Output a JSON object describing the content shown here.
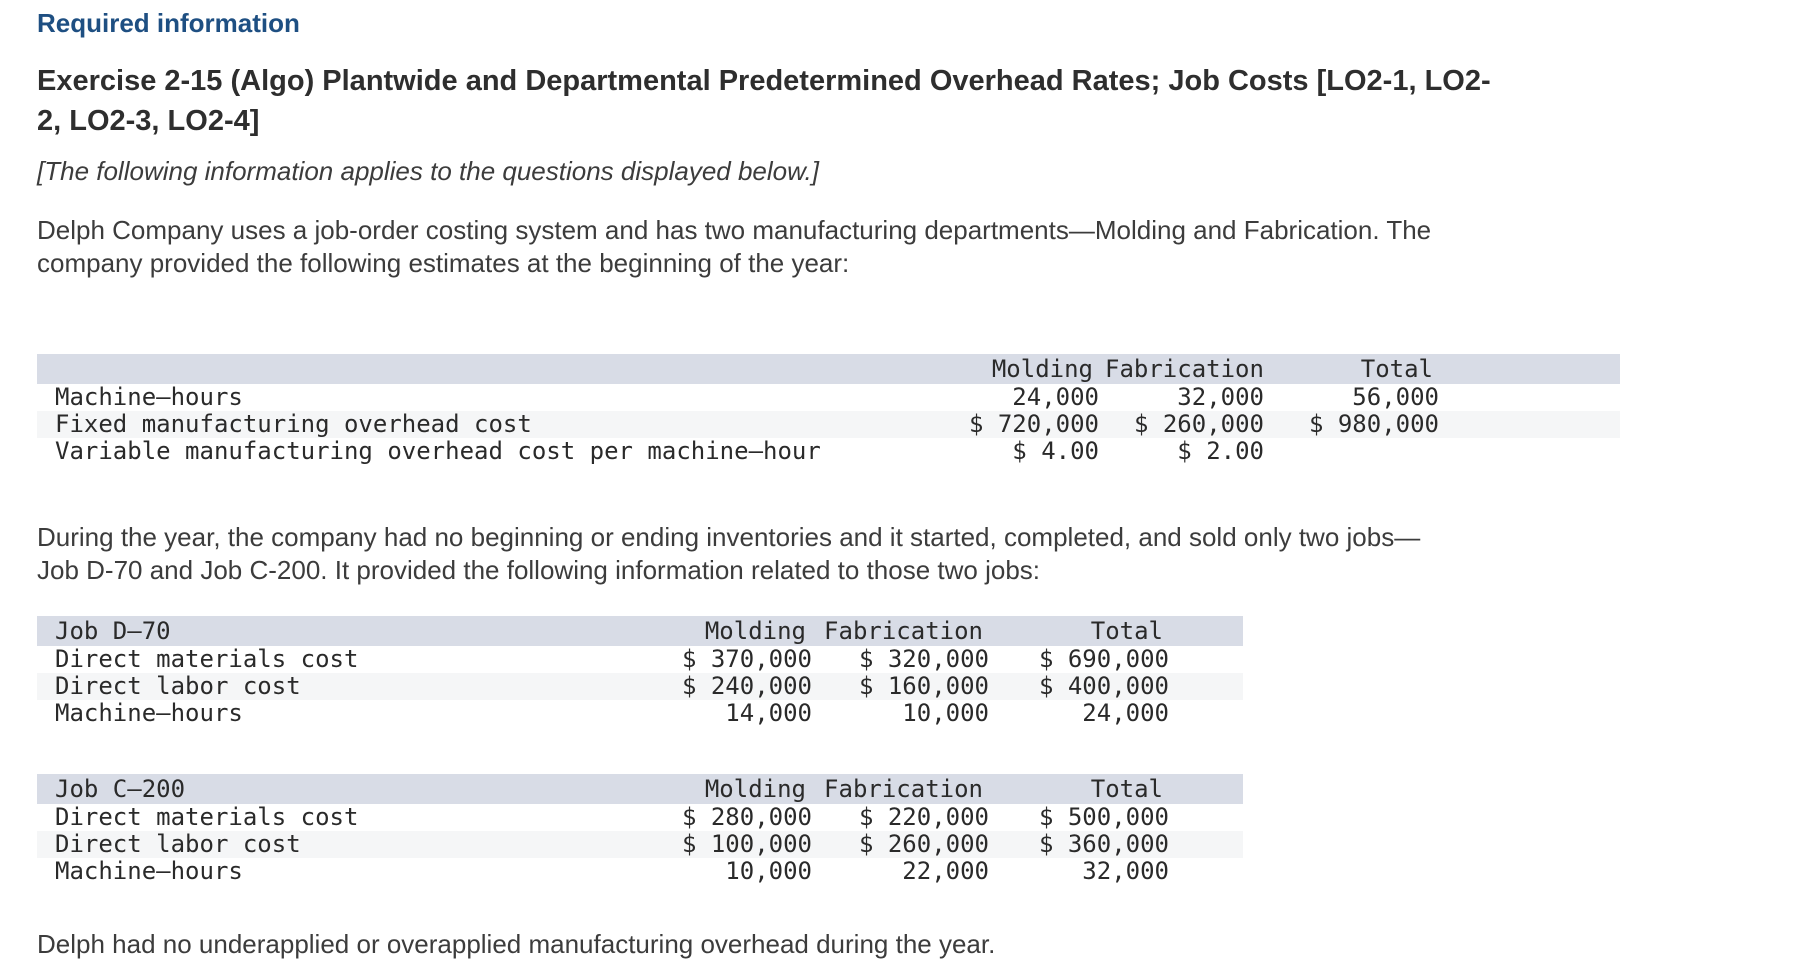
{
  "page": {
    "required_info_label": "Required information",
    "title": "Exercise 2-15 (Algo) Plantwide and Departmental Predetermined Overhead Rates; Job Costs [LO2-1, LO2-\n2, LO2-3, LO2-4]",
    "applies_note": "[The following information applies to the questions displayed below.]",
    "intro_paragraph": "Delph Company uses a job-order costing system and has two manufacturing departments—Molding and Fabrication. The\ncompany provided the following estimates at the beginning of the year:",
    "jobs_paragraph": "During the year, the company had no beginning or ending inventories and it started, completed, and sold only two jobs—\nJob D-70 and Job C-200. It provided the following information related to those two jobs:",
    "closing_paragraph": "Delph had no underapplied or overapplied manufacturing overhead during the year."
  },
  "colors": {
    "heading_blue": "#1e4f82",
    "table_header_bg": "#d8dce6",
    "table_stripe_bg": "#f5f6f7",
    "body_text": "#3c3c3c"
  },
  "estimates_table": {
    "header": {
      "label": "",
      "molding": "Molding",
      "fabrication": "Fabrication",
      "total": "Total"
    },
    "rows": [
      {
        "label": "Machine–hours",
        "molding": "24,000",
        "fabrication": "32,000",
        "total": "56,000"
      },
      {
        "label": "Fixed manufacturing overhead cost",
        "molding": "$ 720,000",
        "fabrication": "$ 260,000",
        "total": "$ 980,000"
      },
      {
        "label": "Variable manufacturing overhead cost per machine–hour",
        "molding": "$ 4.00",
        "fabrication": "$ 2.00",
        "total": ""
      }
    ]
  },
  "job_d70_table": {
    "header": {
      "label": "Job D–70",
      "molding": "Molding",
      "fabrication": "Fabrication",
      "total": "Total"
    },
    "rows": [
      {
        "label": "Direct materials cost",
        "molding": "$ 370,000",
        "fabrication": "$ 320,000",
        "total": "$ 690,000"
      },
      {
        "label": "Direct labor cost",
        "molding": "$ 240,000",
        "fabrication": "$ 160,000",
        "total": "$ 400,000"
      },
      {
        "label": "Machine–hours",
        "molding": "14,000",
        "fabrication": "10,000",
        "total": "24,000"
      }
    ]
  },
  "job_c200_table": {
    "header": {
      "label": "Job C–200",
      "molding": "Molding",
      "fabrication": "Fabrication",
      "total": "Total"
    },
    "rows": [
      {
        "label": "Direct materials cost",
        "molding": "$ 280,000",
        "fabrication": "$ 220,000",
        "total": "$ 500,000"
      },
      {
        "label": "Direct labor cost",
        "molding": "$ 100,000",
        "fabrication": "$ 260,000",
        "total": "$ 360,000"
      },
      {
        "label": "Machine–hours",
        "molding": "10,000",
        "fabrication": "22,000",
        "total": "32,000"
      }
    ]
  }
}
